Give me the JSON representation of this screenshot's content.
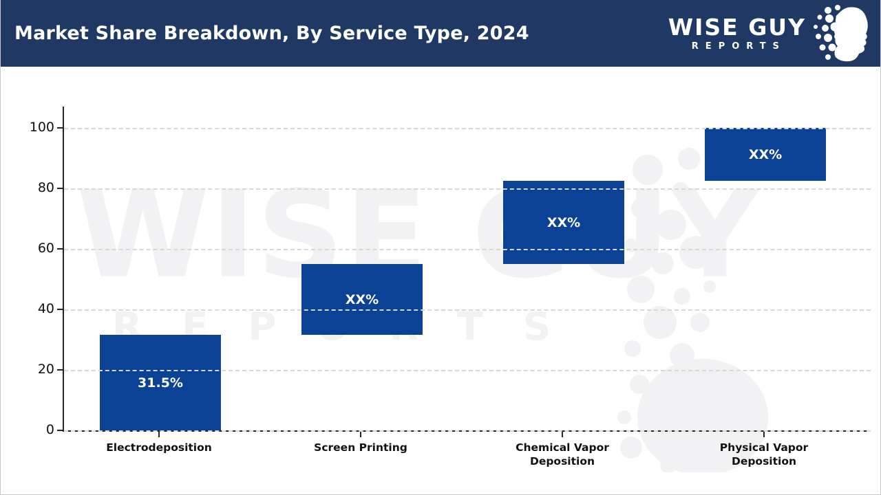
{
  "header": {
    "title": "Market Share Breakdown, By Service Type, 2024",
    "logo": {
      "line1": "WISE GUY",
      "line2": "REPORTS"
    }
  },
  "watermark": {
    "line1": "WISE GUY",
    "line2": "REPORTS"
  },
  "colors": {
    "header_bg": "#203864",
    "bar": "#0B4295",
    "gridline": "#d8d8d8",
    "axis": "#262626",
    "bar_label": "#ffffff",
    "watermark": "#f2f2f4"
  },
  "chart_data": {
    "type": "bar",
    "variant": "waterfall",
    "title": "Market Share Breakdown, By Service Type, 2024",
    "categories": [
      "Electrodeposition",
      "Screen Printing",
      "Chemical Vapor Deposition",
      "Physical Vapor Deposition"
    ],
    "segments": [
      {
        "category": "Electrodeposition",
        "start": 0,
        "end": 31.5,
        "value": 31.5,
        "label": "31.5%"
      },
      {
        "category": "Screen Printing",
        "start": 31.5,
        "end": 55,
        "value": 23.5,
        "label": "XX%"
      },
      {
        "category": "Chemical Vapor Deposition",
        "start": 55,
        "end": 82.5,
        "value": 27.5,
        "label": "XX%"
      },
      {
        "category": "Physical Vapor Deposition",
        "start": 82.5,
        "end": 100,
        "value": 17.5,
        "label": "XX%"
      }
    ],
    "xlabel": "",
    "ylabel": "",
    "ylim": [
      0,
      107
    ],
    "yticks": [
      0,
      20,
      40,
      60,
      80,
      100
    ],
    "grid": "horizontal-dashed",
    "legend": "none",
    "bar_color": "#0B4295"
  }
}
